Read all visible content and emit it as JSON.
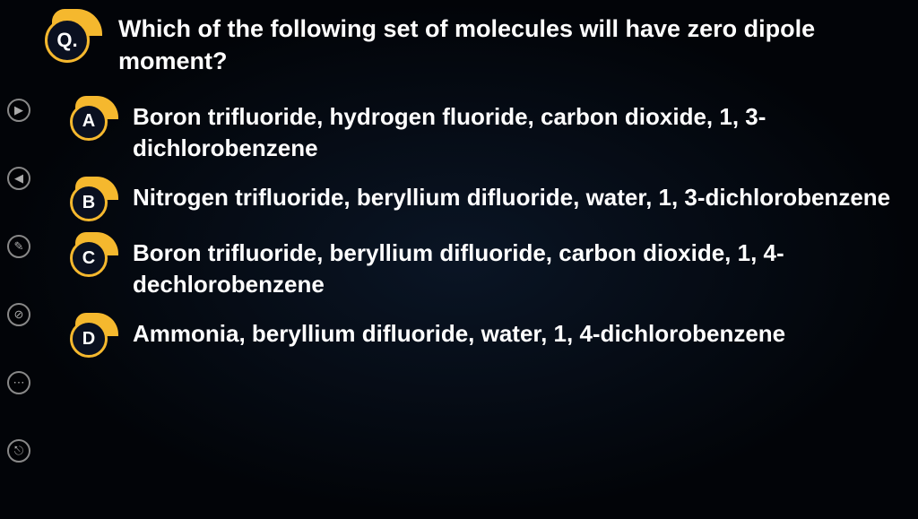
{
  "question": {
    "marker": "Q.",
    "text": "Which of the following set of molecules will have zero dipole moment?"
  },
  "options": [
    {
      "letter": "A",
      "text": "Boron trifluoride, hydrogen fluoride, carbon dioxide, 1, 3-dichlorobenzene"
    },
    {
      "letter": "B",
      "text": "Nitrogen trifluoride, beryllium difluoride, water, 1, 3-dichlorobenzene"
    },
    {
      "letter": "C",
      "text": "Boron trifluoride, beryllium difluoride, carbon dioxide, 1, 4-dechlorobenzene"
    },
    {
      "letter": "D",
      "text": "Ammonia, beryllium difluoride,  water, 1, 4-dichlorobenzene"
    }
  ],
  "colors": {
    "accent": "#f5b82e",
    "background_dark": "#020408",
    "background_center": "#0a1525",
    "text": "#ffffff"
  },
  "side_icons": [
    {
      "glyph": "▶",
      "name": "play-icon"
    },
    {
      "glyph": "◀",
      "name": "back-icon"
    },
    {
      "glyph": "✎",
      "name": "pen-icon"
    },
    {
      "glyph": "⊘",
      "name": "disable-icon"
    },
    {
      "glyph": "⋯",
      "name": "more-icon"
    },
    {
      "glyph": "⎋",
      "name": "exit-icon"
    }
  ]
}
